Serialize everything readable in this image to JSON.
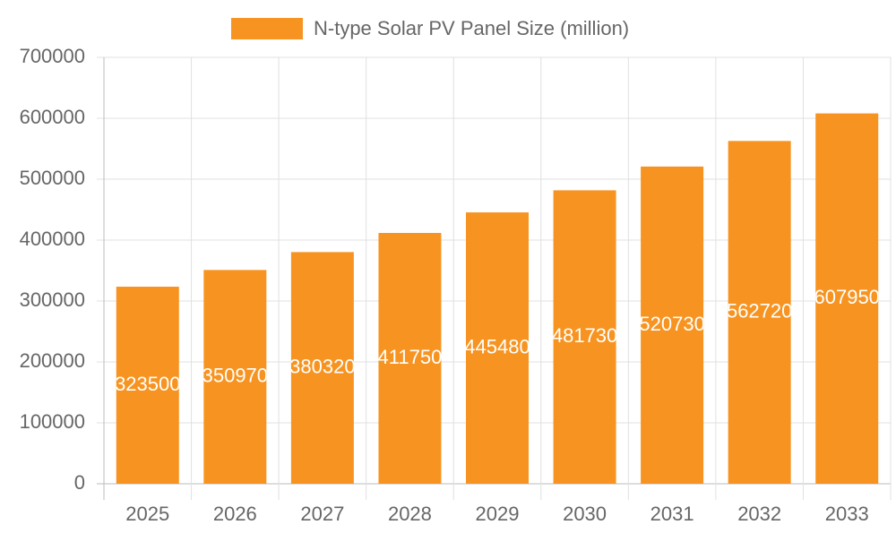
{
  "chart_data": {
    "type": "bar",
    "categories": [
      "2025",
      "2026",
      "2027",
      "2028",
      "2029",
      "2030",
      "2031",
      "2032",
      "2033"
    ],
    "series": [
      {
        "name": "N-type Solar PV Panel Size (million)",
        "color": "#f79421",
        "values": [
          323500,
          350970,
          380320,
          411750,
          445480,
          481730,
          520730,
          562720,
          607950
        ]
      }
    ],
    "ylim": [
      0,
      700000
    ],
    "yticks": [
      0,
      100000,
      200000,
      300000,
      400000,
      500000,
      600000,
      700000
    ],
    "grid": true,
    "legend": "top",
    "data_labels": true
  }
}
